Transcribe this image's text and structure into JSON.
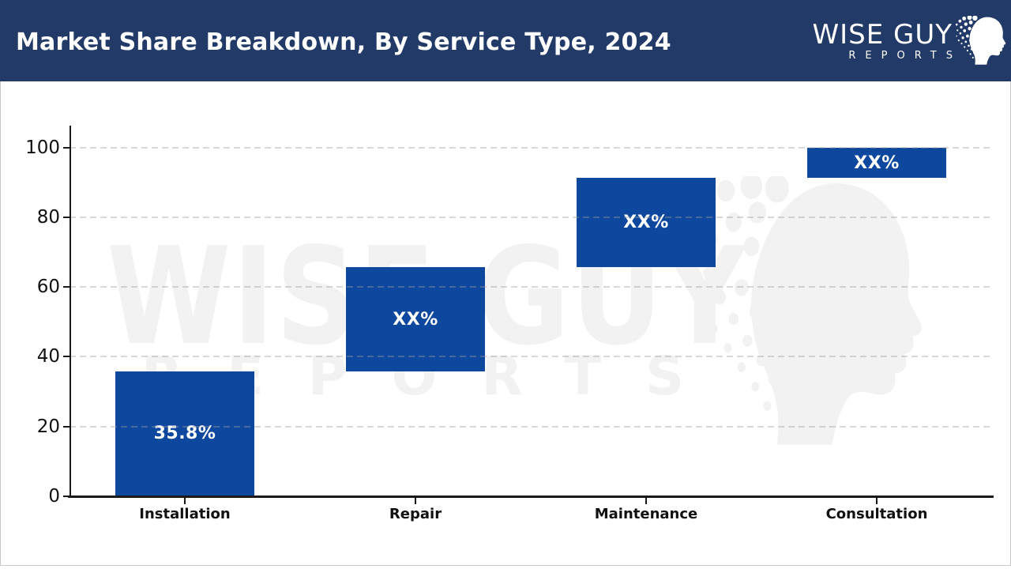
{
  "window": {
    "background": "#ffffff",
    "frame_border_color": "#c9c9c9"
  },
  "header": {
    "background_color": "#223A67",
    "title": "Market Share Breakdown, By Service Type, 2024",
    "title_color": "#ffffff",
    "logo": {
      "wordmark": "WISE GUY",
      "subtext": "REPORTS",
      "color": "#ffffff",
      "face_icon": "dotted-face-profile"
    }
  },
  "watermark": {
    "wordmark": "WISE GUY",
    "subtext": "REPORTS",
    "color": "#f2f2f2"
  },
  "chart_data": {
    "type": "bar",
    "subtype": "waterfall",
    "title": "Market Share Breakdown, By Service Type, 2024",
    "categories": [
      "Installation",
      "Repair",
      "Maintenance",
      "Consultation"
    ],
    "segments": [
      {
        "category": "Installation",
        "start": 0,
        "end": 35.8,
        "label": "35.8%"
      },
      {
        "category": "Repair",
        "start": 35.8,
        "end": 65.6,
        "label": "XX%"
      },
      {
        "category": "Maintenance",
        "start": 65.6,
        "end": 91.2,
        "label": "XX%"
      },
      {
        "category": "Consultation",
        "start": 91.2,
        "end": 100,
        "label": "XX%"
      }
    ],
    "xlabel": "",
    "ylabel": "",
    "ylim": [
      0,
      106
    ],
    "yticks": [
      0,
      20,
      40,
      60,
      80,
      100
    ],
    "grid": {
      "axis": "y",
      "style": "dashed",
      "color": "#dcdcdc"
    },
    "legend_position": "none",
    "bar_color": "#0D479E",
    "bar_label_color": "#ffffff",
    "axis_color": "#1a1a1a",
    "tick_label_color": "#111111"
  }
}
